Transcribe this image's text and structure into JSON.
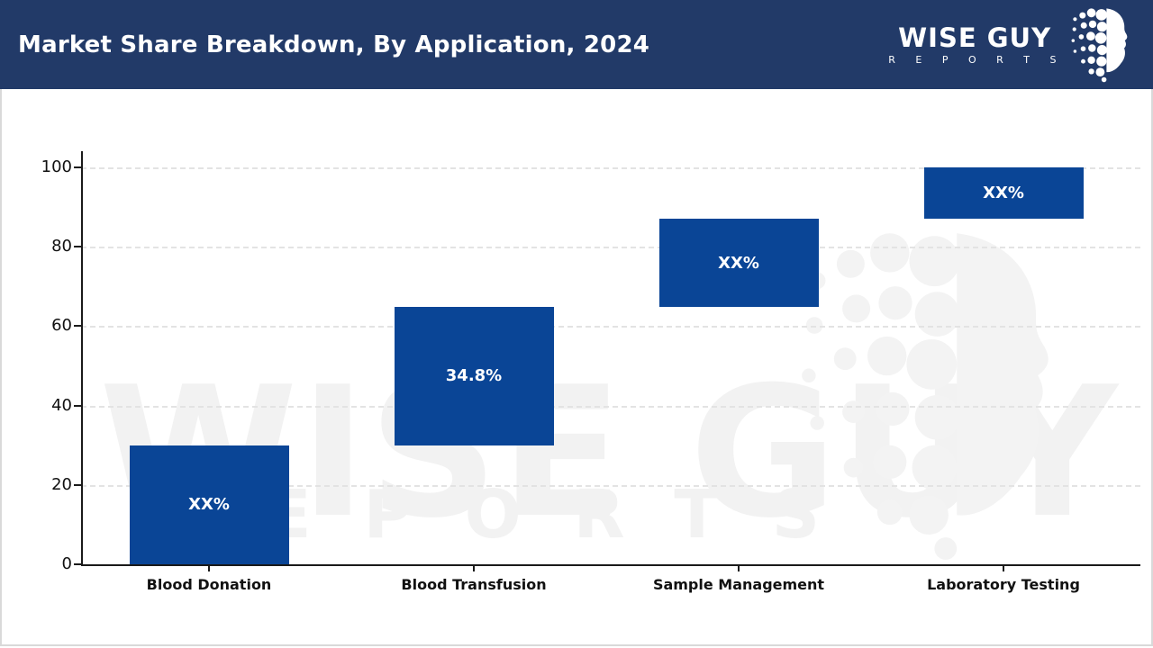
{
  "header": {
    "title": "Market Share Breakdown, By Application, 2024",
    "logo": {
      "line1": "WISE GUY",
      "line2": "R E P O R T S"
    }
  },
  "watermark": {
    "line1": "WISE GUY",
    "line2": "REPORTS"
  },
  "chart_data": {
    "type": "bar",
    "subtype": "floating-waterfall",
    "title": "Market Share Breakdown, By Application, 2024",
    "xlabel": "",
    "ylabel": "",
    "categories": [
      "Blood Donation",
      "Blood Transfusion",
      "Sample Management",
      "Laboratory Testing"
    ],
    "segments": [
      {
        "category": "Blood Donation",
        "start": 0,
        "end": 30,
        "label": "XX%"
      },
      {
        "category": "Blood Transfusion",
        "start": 30,
        "end": 64.8,
        "label": "34.8%"
      },
      {
        "category": "Sample Management",
        "start": 64.8,
        "end": 87,
        "label": "XX%"
      },
      {
        "category": "Laboratory Testing",
        "start": 87,
        "end": 100,
        "label": "XX%"
      }
    ],
    "yticks": [
      0,
      20,
      40,
      60,
      80,
      100
    ],
    "ylim": [
      0,
      104
    ],
    "grid": "dashed-horizontal",
    "legend": "none",
    "bar_color": "#0a4596",
    "bar_label_color": "#ffffff"
  },
  "colors": {
    "header_bg": "#223a68",
    "bar": "#0a4596",
    "watermark": "#f2f2f2",
    "grid": "#e3e3e3",
    "axis": "#1a1a1a"
  }
}
